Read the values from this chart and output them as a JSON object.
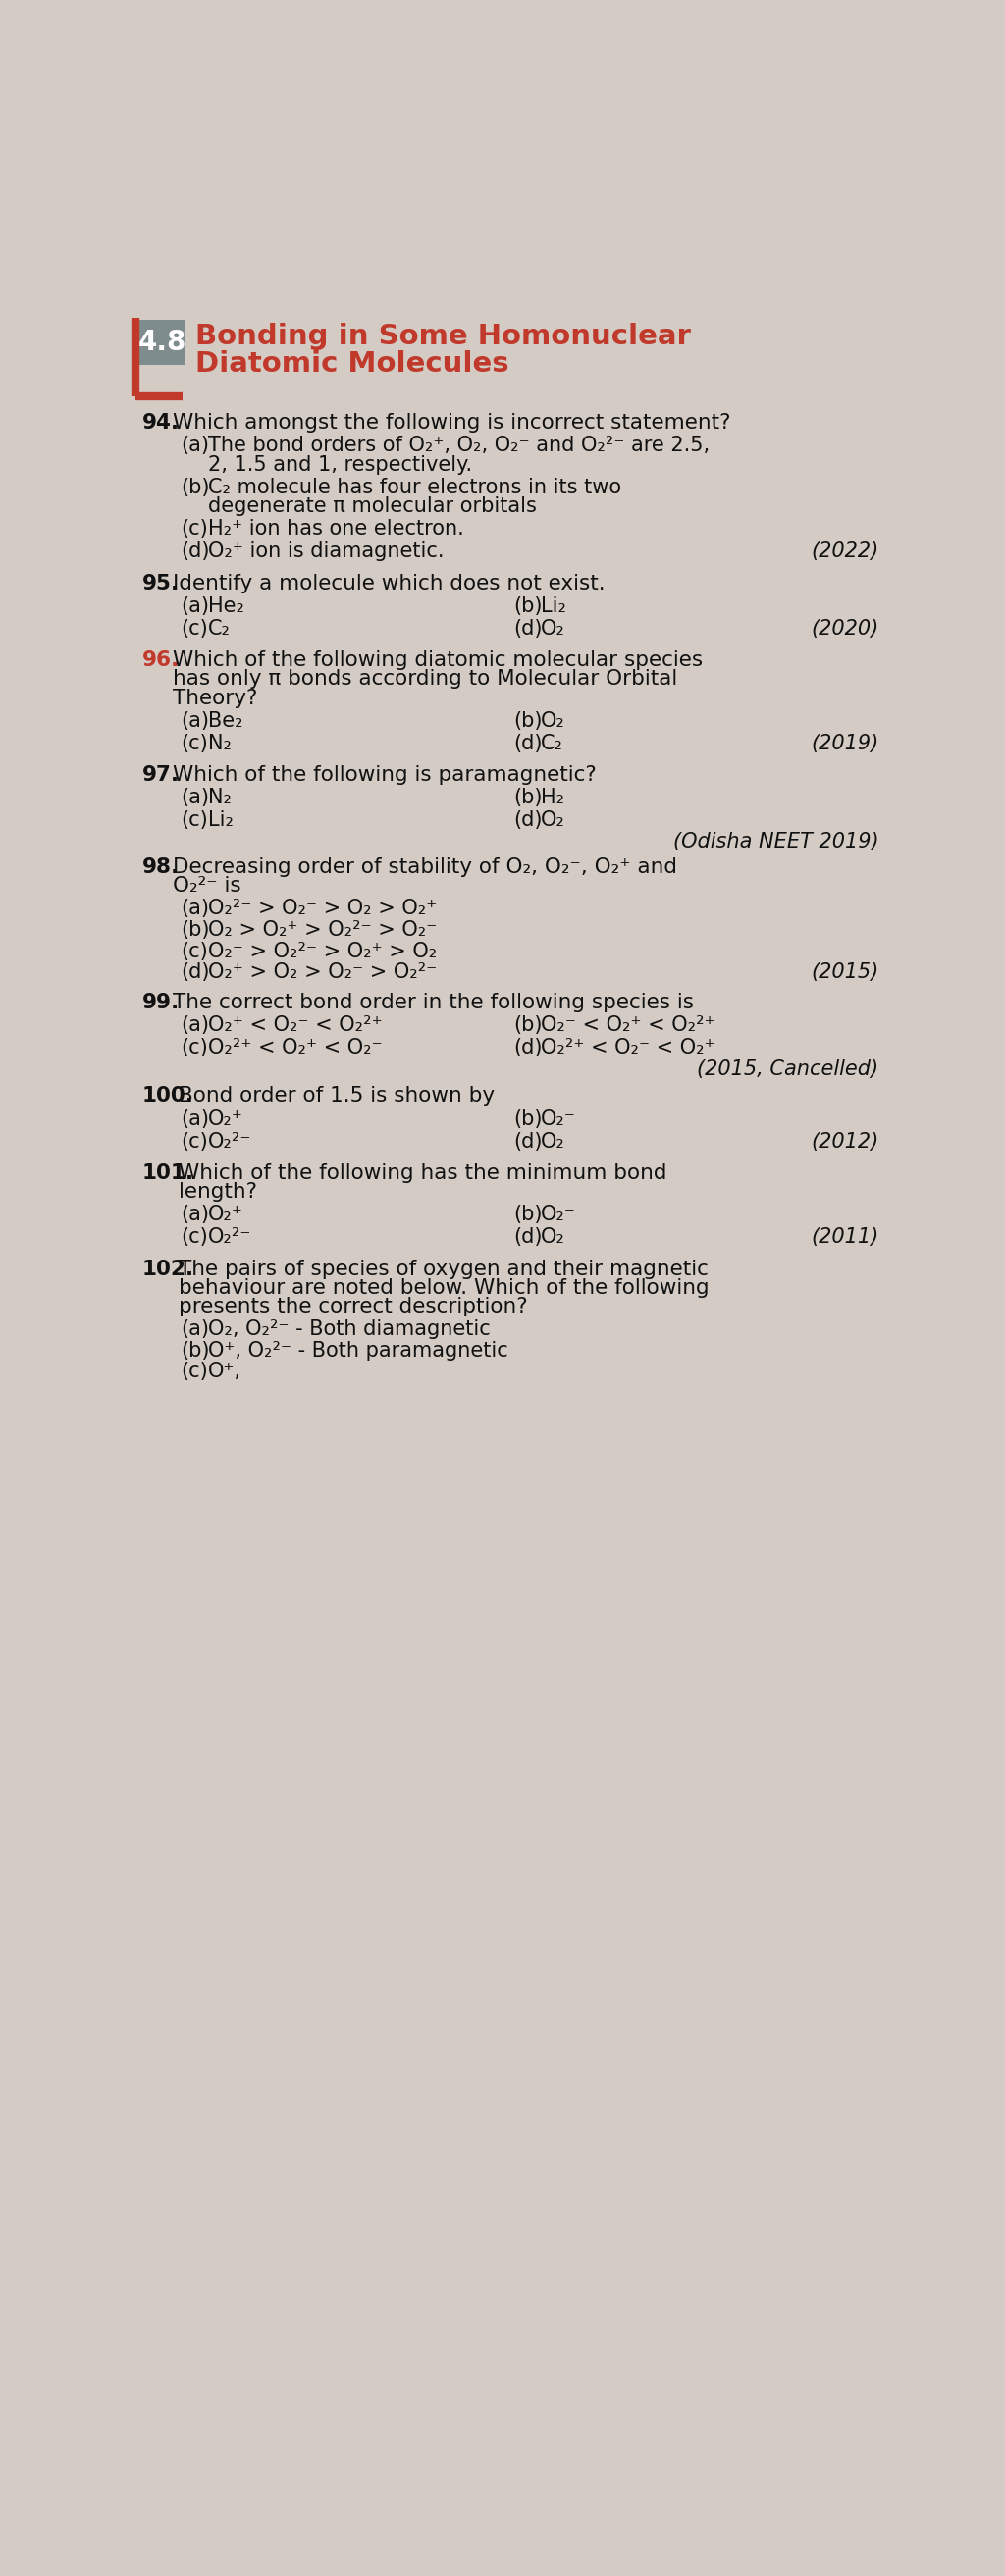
{
  "bg_color": "#d4ccc4",
  "text_color": "#111111",
  "red_color": "#c0392b",
  "header_box_color": "#7f8c8d",
  "header_number": "4.8",
  "header_title_line1": "Bonding in Some Homonuclear",
  "header_title_line2": "Diatomic Molecules"
}
